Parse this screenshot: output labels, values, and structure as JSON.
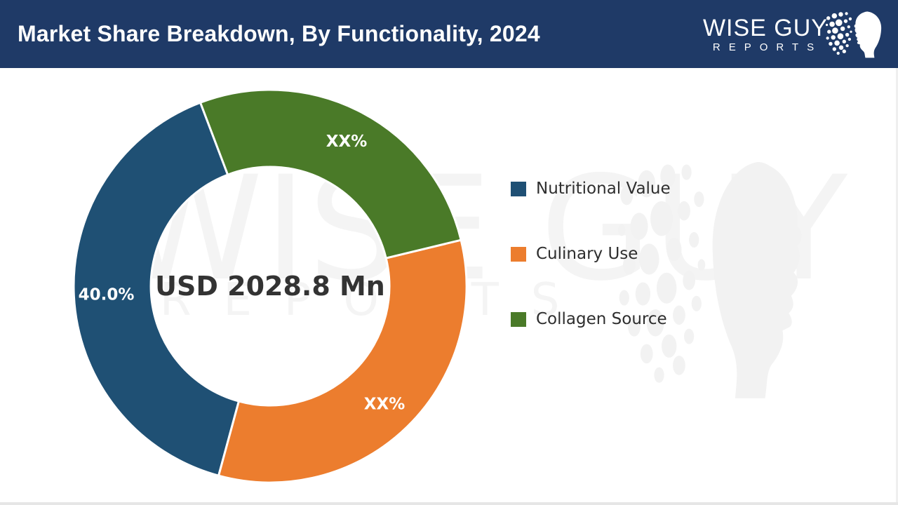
{
  "header": {
    "title": "Market Share Breakdown, By Functionality, 2024",
    "background_color": "#1F3A67",
    "logo": {
      "line1": "WISE GUY",
      "line2": "REPORTS"
    }
  },
  "watermark": {
    "line1": "WISE GUY",
    "line2": "REPORTS"
  },
  "chart_data": {
    "type": "donut",
    "title": "Market Share Breakdown, By Functionality, 2024",
    "center_label": "USD 2028.8 Mn",
    "legend_position": "right",
    "start_angle_deg": 110.8,
    "inner_radius_ratio": 0.607,
    "label_radius_ratio": 0.835,
    "slices": [
      {
        "label": "Nutritional Value",
        "display": "40.0%",
        "value": 40.0,
        "color": "#1F5074"
      },
      {
        "label": "Culinary Use",
        "display": "XX%",
        "value": 33.0,
        "color": "#EC7D2E"
      },
      {
        "label": "Collagen Source",
        "display": "XX%",
        "value": 27.0,
        "color": "#4A7A28"
      }
    ]
  }
}
